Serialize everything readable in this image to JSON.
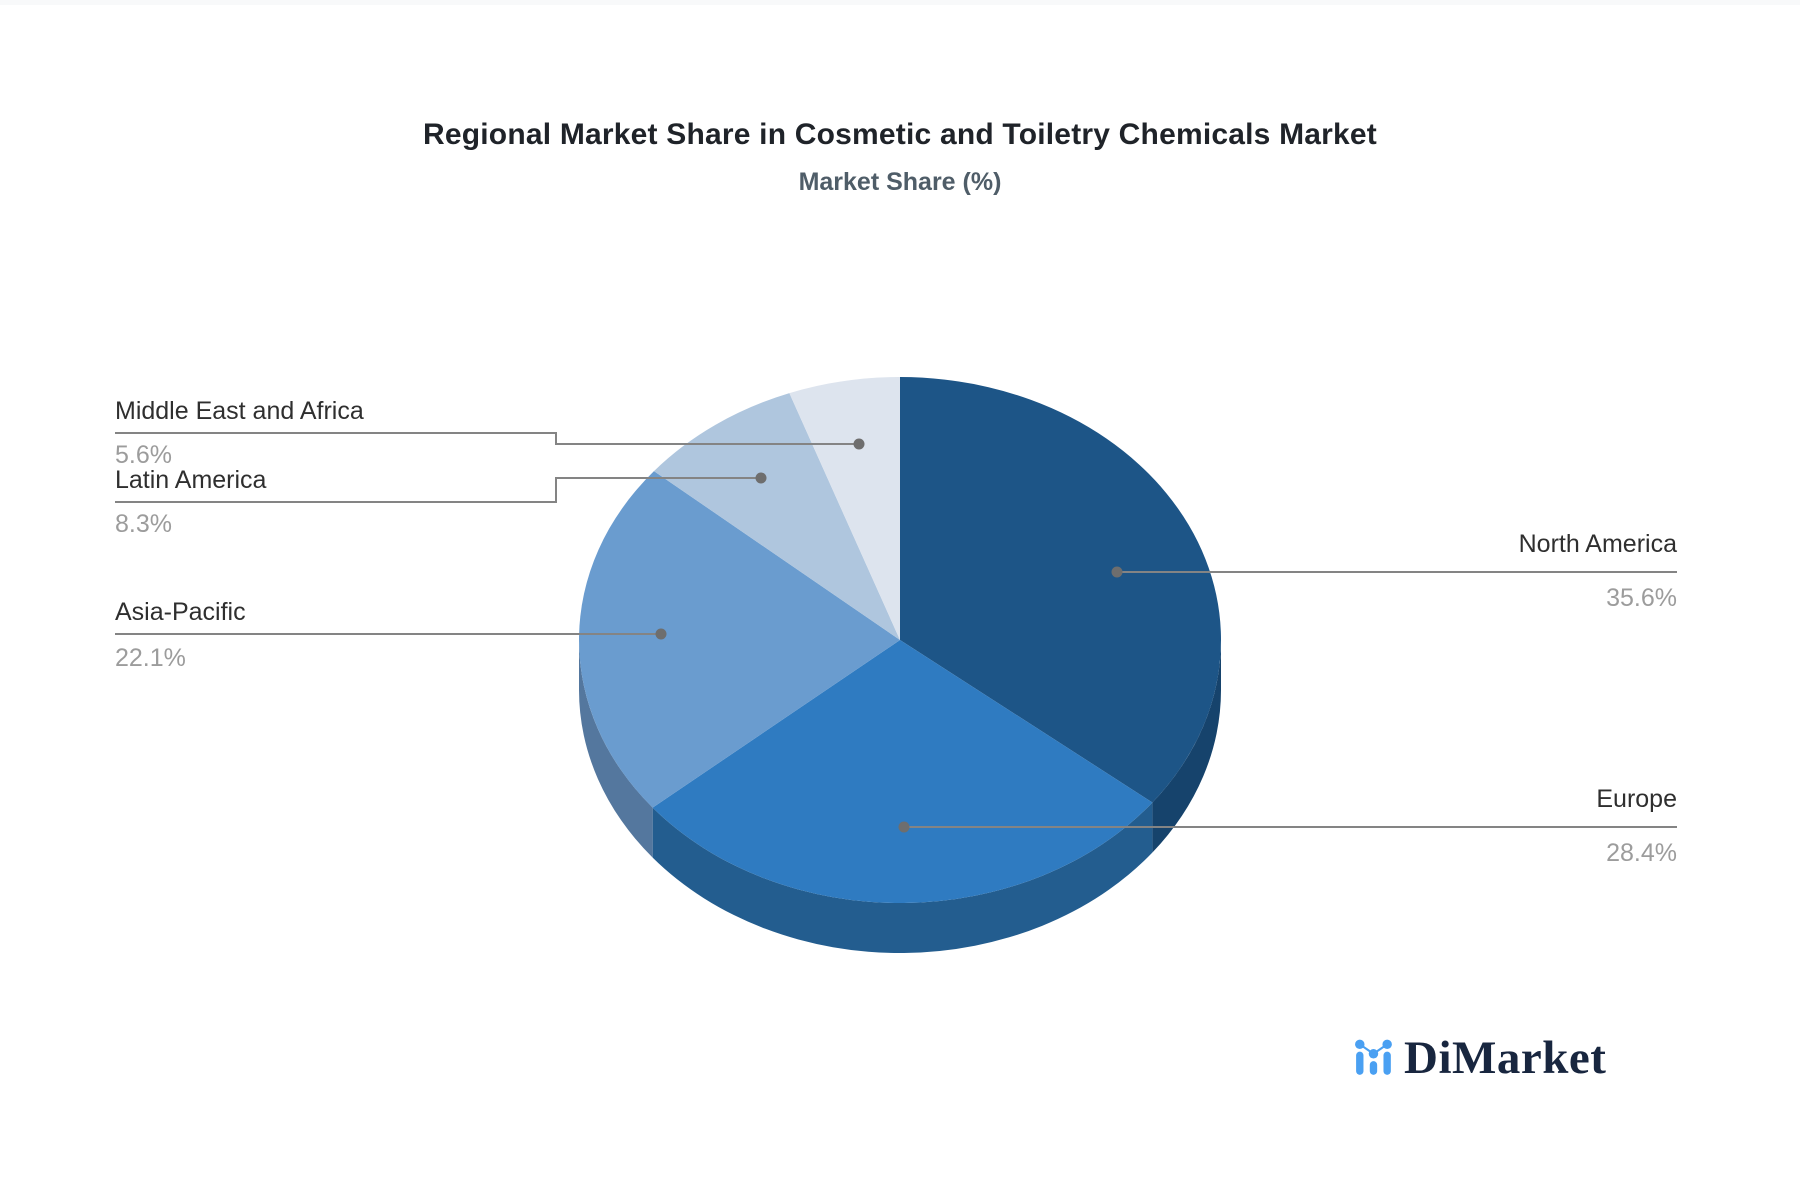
{
  "page": {
    "background": "#ffffff",
    "top_strip_color": "#f8f9fa"
  },
  "chart_data": {
    "type": "pie",
    "style": "3d",
    "title": "Regional Market Share in Cosmetic and Toiletry Chemicals Market",
    "subtitle": "Market Share (%)",
    "unit": "%",
    "direction": "clockwise",
    "start_angle_deg": 0,
    "legend_position": "none",
    "label_style": "leader-lines",
    "series": [
      {
        "label": "North America",
        "value": 35.6,
        "percent_label": "35.6%",
        "color": "#1D5587",
        "side_color": "#16436C"
      },
      {
        "label": "Europe",
        "value": 28.4,
        "percent_label": "28.4%",
        "color": "#2F7BC1",
        "side_color": "#235D8F"
      },
      {
        "label": "Asia-Pacific",
        "value": 22.1,
        "percent_label": "22.1%",
        "color": "#6A9CCF",
        "side_color": "#54779E"
      },
      {
        "label": "Latin America",
        "value": 8.3,
        "percent_label": "8.3%",
        "color": "#AFC6DE",
        "side_color": "#8BA4C1"
      },
      {
        "label": "Middle East and Africa",
        "value": 5.6,
        "percent_label": "5.6%",
        "color": "#DDE4EE",
        "side_color": "#B5BFCE"
      }
    ],
    "colors": {
      "title_text": "#1f2329",
      "subtitle_text": "#4f5d68",
      "label_text": "#2f2f2f",
      "percent_text": "#9c9c9c",
      "leader_line": "#848484",
      "leader_dot": "#6e6e6e"
    }
  },
  "branding": {
    "logo_text": "DiMarket",
    "logo_text_color": "#18263f",
    "icon": "bar-chart-icon",
    "icon_color": "#4aa0f2"
  }
}
